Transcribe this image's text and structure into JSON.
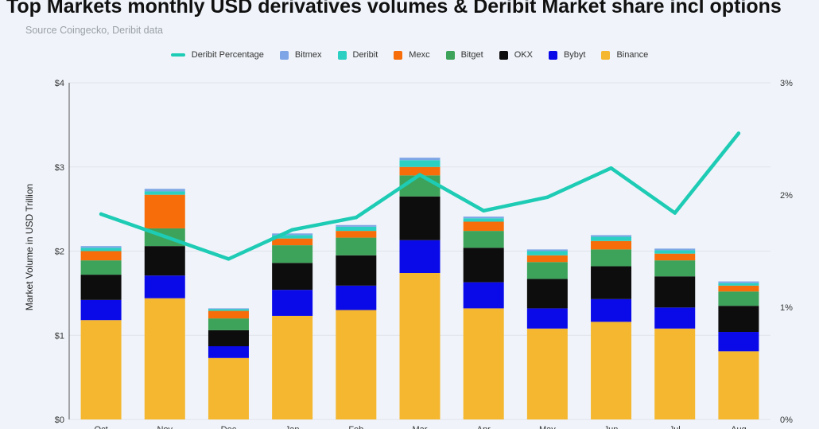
{
  "header": {
    "title": "Top Markets monthly USD derivatives volumes & Deribit Market share incl options",
    "subtitle": "Source Coingecko, Deribit data"
  },
  "chart_data": {
    "type": "bar",
    "stacked": true,
    "title": "Top Markets monthly USD derivatives volumes & Deribit Market share incl options",
    "subtitle": "Source Coingecko, Deribit data",
    "xlabel": "",
    "ylabel": "Market Volume in USD Trillion",
    "ylim": [
      0,
      4
    ],
    "y_ticks": [
      "$0",
      "$1",
      "$2",
      "$3",
      "$4"
    ],
    "y2lim": [
      0,
      3
    ],
    "y2_ticks": [
      "0%",
      "1%",
      "2%",
      "3%"
    ],
    "grid": true,
    "legend_position": "top",
    "categories": [
      "Oct",
      "Nov",
      "Dec",
      "Jan",
      "Feb",
      "Mar",
      "Apr",
      "May",
      "Jun",
      "Jul",
      "Aug"
    ],
    "series": [
      {
        "name": "Binance",
        "color": "#f4b72f",
        "values": [
          1.18,
          1.44,
          0.73,
          1.23,
          1.3,
          1.74,
          1.32,
          1.08,
          1.16,
          1.08,
          0.81
        ]
      },
      {
        "name": "Bybyt",
        "color": "#0a0ae8",
        "values": [
          0.24,
          0.27,
          0.14,
          0.31,
          0.29,
          0.39,
          0.31,
          0.24,
          0.27,
          0.25,
          0.23
        ]
      },
      {
        "name": "OKX",
        "color": "#0d0d0d",
        "values": [
          0.3,
          0.35,
          0.19,
          0.32,
          0.36,
          0.52,
          0.41,
          0.35,
          0.39,
          0.37,
          0.31
        ]
      },
      {
        "name": "Bitget",
        "color": "#3da35a",
        "values": [
          0.17,
          0.21,
          0.14,
          0.21,
          0.21,
          0.25,
          0.2,
          0.2,
          0.2,
          0.19,
          0.17
        ]
      },
      {
        "name": "Mexc",
        "color": "#f66d0a",
        "values": [
          0.11,
          0.4,
          0.09,
          0.08,
          0.08,
          0.1,
          0.11,
          0.08,
          0.1,
          0.08,
          0.07
        ]
      },
      {
        "name": "Deribit",
        "color": "#2bd0c2",
        "values": [
          0.04,
          0.04,
          0.02,
          0.04,
          0.05,
          0.08,
          0.04,
          0.05,
          0.05,
          0.04,
          0.03
        ]
      },
      {
        "name": "Bitmex",
        "color": "#7ea6e6",
        "values": [
          0.02,
          0.03,
          0.01,
          0.02,
          0.02,
          0.03,
          0.02,
          0.02,
          0.02,
          0.02,
          0.02
        ]
      }
    ],
    "line_series": {
      "name": "Deribit Percentage",
      "color": "#1ecbb4",
      "axis": "right",
      "values": [
        1.83,
        1.63,
        1.43,
        1.69,
        1.8,
        2.18,
        1.86,
        1.98,
        2.24,
        1.84,
        2.55
      ]
    },
    "legend": [
      "Deribit Percentage",
      "Bitmex",
      "Deribit",
      "Mexc",
      "Bitget",
      "OKX",
      "Bybyt",
      "Binance"
    ]
  }
}
